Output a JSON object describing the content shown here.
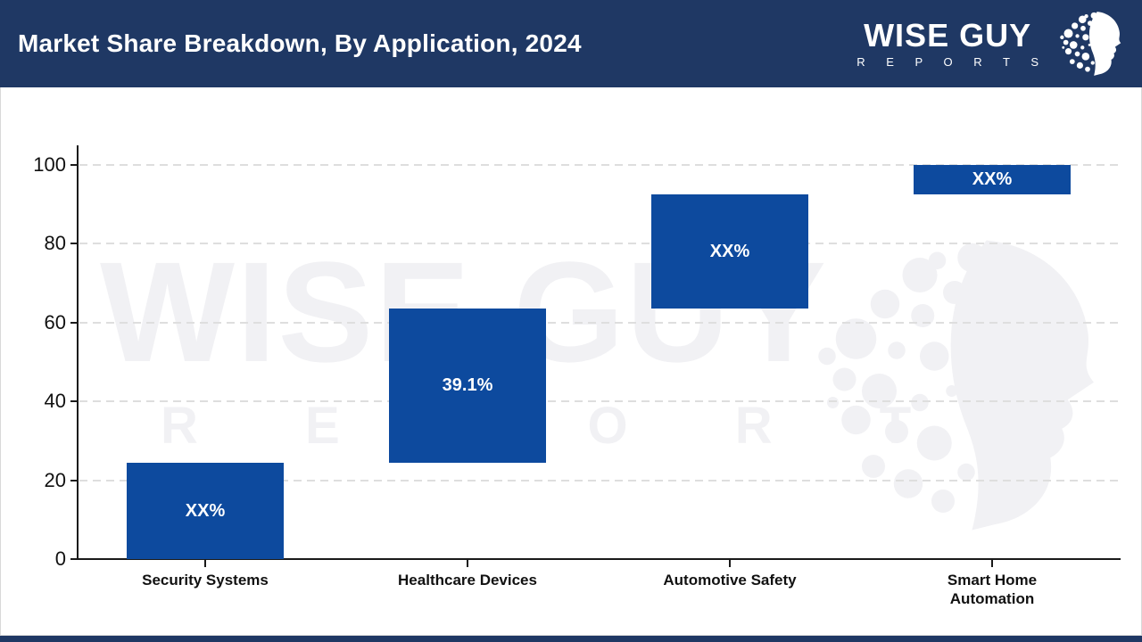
{
  "header": {
    "title": "Market Share Breakdown, By Application, 2024",
    "bg_color": "#1F3864",
    "logo": {
      "line1": "WISE GUY",
      "line2": "R E P O R T S"
    }
  },
  "watermark": {
    "line1": "WISE GUY",
    "line2": "R E P O R T S"
  },
  "chart_data": {
    "type": "bar",
    "subtype": "waterfall-floating-segments",
    "title": "Market Share Breakdown, By Application, 2024",
    "xlabel": "",
    "ylabel": "",
    "categories": [
      "Security Systems",
      "Healthcare Devices",
      "Automotive Safety",
      "Smart Home\nAutomation"
    ],
    "segments": [
      {
        "category": "Security Systems",
        "start": 0,
        "end": 24.4,
        "value_label": "XX%"
      },
      {
        "category": "Healthcare Devices",
        "start": 24.4,
        "end": 63.5,
        "value_label": "39.1%"
      },
      {
        "category": "Automotive Safety",
        "start": 63.5,
        "end": 92.6,
        "value_label": "XX%"
      },
      {
        "category": "Smart Home Automation",
        "start": 92.6,
        "end": 100,
        "value_label": "XX%"
      }
    ],
    "yticks": [
      0,
      20,
      40,
      60,
      80,
      100
    ],
    "ylim": [
      0,
      105
    ],
    "grid": "horizontal dashed lines at yticks, light gray",
    "legend": "none",
    "bar_color": "#0D4A9E",
    "bar_label_color": "#ffffff",
    "axis_color": "#1a1a1a",
    "grid_color": "#dedede"
  }
}
